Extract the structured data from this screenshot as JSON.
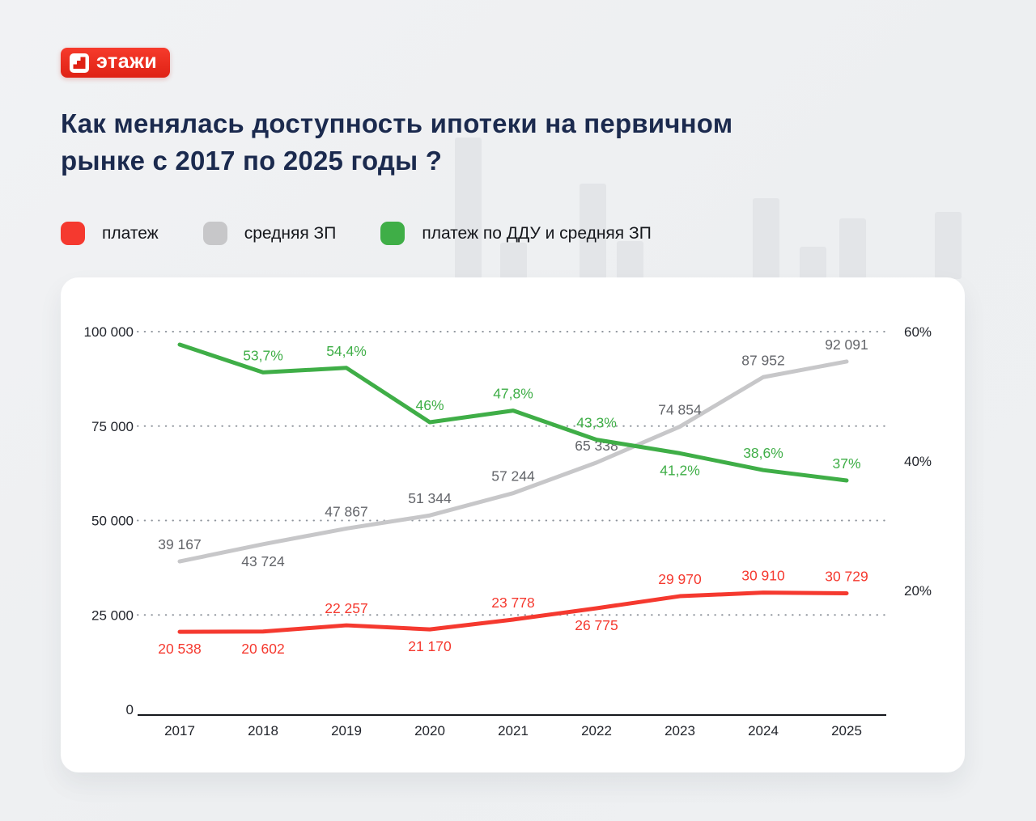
{
  "logo": {
    "text": "этажи",
    "bg": "#ef2a1e"
  },
  "title": {
    "line1": "Как менялась доступность ипотеки на первичном",
    "line2": "рынке с 2017 по 2025 годы ?"
  },
  "legend": [
    {
      "label": "платеж",
      "color": "#f5392f"
    },
    {
      "label": "средняя ЗП",
      "color": "#c7c7c9"
    },
    {
      "label": "платеж по ДДУ  и средняя ЗП",
      "color": "#3fae47"
    }
  ],
  "chart_data": {
    "type": "line",
    "x_labels": [
      "2017",
      "2018",
      "2019",
      "2020",
      "2021",
      "2022",
      "2023",
      "2024",
      "2025"
    ],
    "left_axis": {
      "ticks": [
        "100 000",
        "75 000",
        "50 000",
        "25 000",
        "0"
      ],
      "values": [
        100000,
        75000,
        50000,
        25000,
        0
      ],
      "max": 100000
    },
    "right_axis": {
      "ticks": [
        "60%",
        "40%",
        "20%"
      ],
      "values": [
        60,
        40,
        20
      ],
      "max": 60
    },
    "grid": "dotted-horizontal",
    "legend_position": "top-left-above-chart",
    "series": [
      {
        "name": "средняя ЗП",
        "color": "#c7c7c9",
        "label_color": "#63656a",
        "axis": "left",
        "values": [
          39167,
          43724,
          47867,
          51344,
          57244,
          65338,
          74854,
          87952,
          92091
        ],
        "labels": [
          "39 167",
          "43 724",
          "47 867",
          "51 344",
          "57 244",
          "65 338",
          "74 854",
          "87 952",
          "92 091"
        ],
        "label_side": [
          "above",
          "below",
          "above",
          "above",
          "above",
          "above",
          "above",
          "above",
          "above"
        ]
      },
      {
        "name": "платеж по ДДУ  и средняя ЗП",
        "color": "#3fae47",
        "axis": "right",
        "values": [
          58,
          53.7,
          54.4,
          46,
          47.8,
          43.3,
          41.2,
          38.6,
          37
        ],
        "labels": [
          "",
          "53,7%",
          "54,4%",
          "46%",
          "47,8%",
          "43,3%",
          "41,2%",
          "38,6%",
          "37%"
        ],
        "label_side": [
          "above",
          "above",
          "above",
          "above",
          "above",
          "above",
          "below",
          "above",
          "above"
        ]
      },
      {
        "name": "платеж",
        "color": "#f5392f",
        "axis": "left",
        "values": [
          20538,
          20602,
          22257,
          21170,
          23778,
          26775,
          29970,
          30910,
          30729
        ],
        "labels": [
          "20 538",
          "20 602",
          "22 257",
          "21 170",
          "23 778",
          "26 775",
          "29 970",
          "30 910",
          "30 729"
        ],
        "label_side": [
          "below",
          "below",
          "above",
          "below",
          "above",
          "below",
          "above",
          "above",
          "above"
        ]
      }
    ]
  }
}
